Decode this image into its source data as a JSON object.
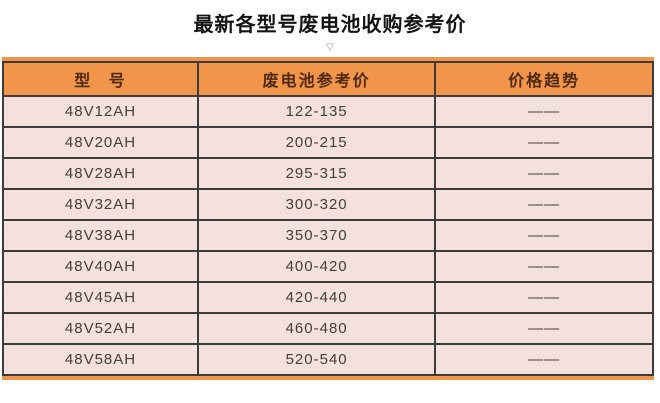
{
  "page": {
    "title": "最新各型号废电池收购参考价",
    "arrow_icon": "▽"
  },
  "colors": {
    "header_bg": "#F0954A",
    "header_text": "#4F2A10",
    "row_bg": "#F4E0DD",
    "border": "#3C3C3C",
    "title_text": "#141414"
  },
  "table": {
    "headers": [
      "型 号",
      "废电池参考价",
      "价格趋势"
    ],
    "rows": [
      {
        "model": "48V12AH",
        "price": "122-135",
        "trend": "——"
      },
      {
        "model": "48V20AH",
        "price": "200-215",
        "trend": "——"
      },
      {
        "model": "48V28AH",
        "price": "295-315",
        "trend": "——"
      },
      {
        "model": "48V32AH",
        "price": "300-320",
        "trend": "——"
      },
      {
        "model": "48V38AH",
        "price": "350-370",
        "trend": "——"
      },
      {
        "model": "48V40AH",
        "price": "400-420",
        "trend": "——"
      },
      {
        "model": "48V45AH",
        "price": "420-440",
        "trend": "——"
      },
      {
        "model": "48V52AH",
        "price": "460-480",
        "trend": "——"
      },
      {
        "model": "48V58AH",
        "price": "520-540",
        "trend": "——"
      }
    ]
  }
}
